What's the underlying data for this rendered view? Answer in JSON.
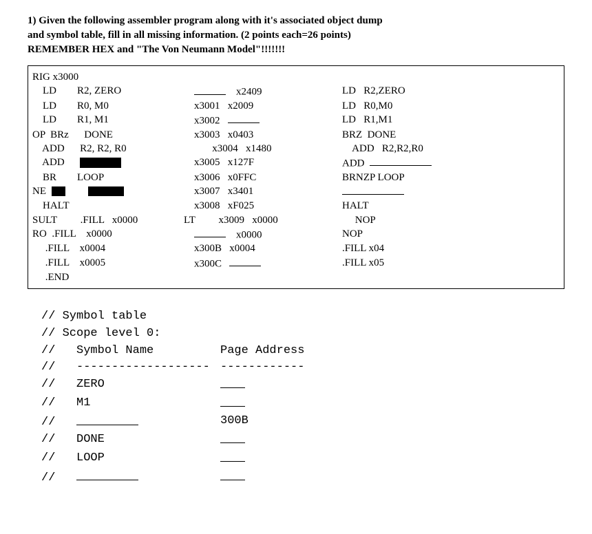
{
  "question": {
    "line1": "1) Given the following assembler program along with it's associated object dump",
    "line2": "and symbol table, fill in all missing information.  (2 points each=26 points)",
    "line3": "REMEMBER HEX and \"The Von Neumann Model\"!!!!!!!"
  },
  "asm": {
    "r0_left": "RIG x3000",
    "r1_left": "    LD        R2, ZERO",
    "r1_mid_b": "x2409",
    "r1_right": "LD   R2,ZERO",
    "r2_left": "    LD        R0, M0",
    "r2_mid_a": "x3001",
    "r2_mid_b": "x2009",
    "r2_right": "LD   R0,M0",
    "r3_left": "    LD        R1, M1",
    "r3_mid_a": "x3002",
    "r3_right": "LD   R1,M1",
    "r4_left": "OP  BRz      DONE",
    "r4_mid_a": "x3003",
    "r4_mid_b": "x0403",
    "r4_right": "BRZ  DONE",
    "r5_left": "    ADD      R2, R2, R0",
    "r5_mid_b": "x3004",
    "r5_mid_c": "x1480",
    "r5_right": "    ADD   R2,R2,R0",
    "r6_left": "    ADD",
    "r6_mid_a": "x3005",
    "r6_mid_b": "x127F",
    "r6_right": "ADD",
    "r7_left": "    BR        LOOP",
    "r7_mid_a": "x3006",
    "r7_mid_b": "x0FFC",
    "r7_right": "BRNZP LOOP",
    "r8_left_a": "NE",
    "r8_mid_a": "x3007",
    "r8_mid_b": "x3401",
    "r9_left": "    HALT",
    "r9_mid_a": "x3008",
    "r9_mid_b": "xF025",
    "r9_right": "HALT",
    "r10_left": "SULT         .FILL   x0000",
    "r10_mid_a": "LT",
    "r10_mid_b": "x3009",
    "r10_mid_c": "x0000",
    "r10_right": "     NOP",
    "r11_left": "RO  .FILL    x0000",
    "r11_mid_b": "x0000",
    "r11_right": "NOP",
    "r12_left": "     .FILL    x0004",
    "r12_mid_a": "x300B",
    "r12_mid_b": "x0004",
    "r12_right": ".FILL x04",
    "r13_left": "     .FILL    x0005",
    "r13_mid_a": "x300C",
    "r13_right": ".FILL x05",
    "r14_left": "     .END"
  },
  "sym": {
    "h1": "// Symbol table",
    "h2": "// Scope level 0:",
    "h3a": "//   Symbol Name",
    "h3b": "Page Address",
    "dash1": "//   -------------------",
    "dash2": "------------",
    "s1": "//   ZERO",
    "s2": "//   M1",
    "s3a": "//",
    "s3b": "300B",
    "s4": "//   DONE",
    "s5": "//   LOOP",
    "s6": "//"
  }
}
